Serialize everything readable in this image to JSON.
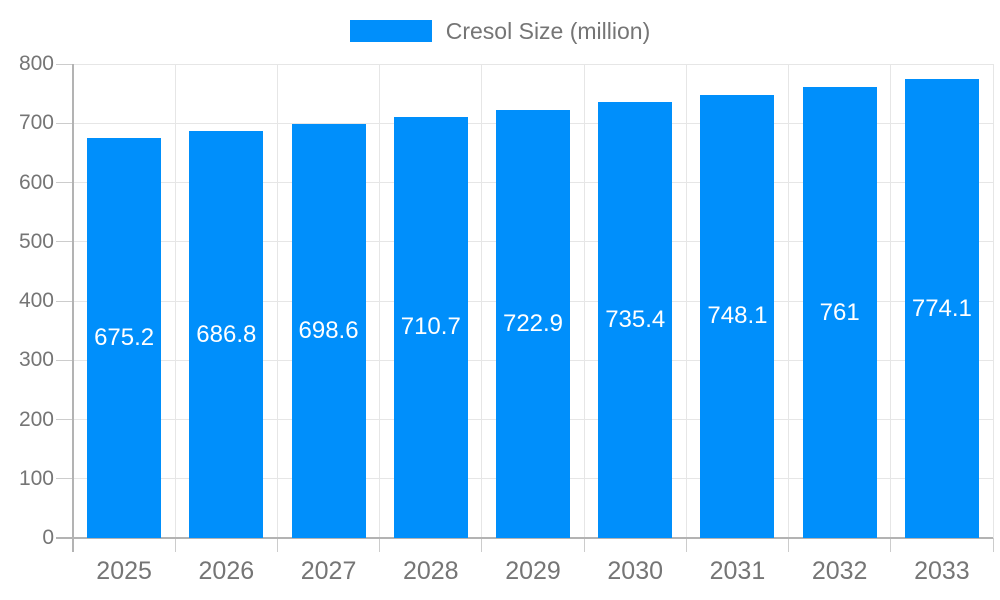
{
  "chart_data": {
    "type": "bar",
    "title": "",
    "legend": {
      "label": "Cresol Size (million)",
      "position": "top"
    },
    "categories": [
      "2025",
      "2026",
      "2027",
      "2028",
      "2029",
      "2030",
      "2031",
      "2032",
      "2033"
    ],
    "series": [
      {
        "name": "Cresol Size (million)",
        "values": [
          675.2,
          686.8,
          698.6,
          710.7,
          722.9,
          735.4,
          748.1,
          761,
          774.1
        ],
        "value_labels": [
          "675.2",
          "686.8",
          "698.6",
          "710.7",
          "722.9",
          "735.4",
          "748.1",
          "761",
          "774.1"
        ]
      }
    ],
    "xlabel": "",
    "ylabel": "",
    "ylim": [
      0,
      800
    ],
    "ytick_step": 100,
    "ytick_labels": [
      "0",
      "100",
      "200",
      "300",
      "400",
      "500",
      "600",
      "700",
      "800"
    ],
    "grid": true,
    "colors": {
      "bar": "#008FFB",
      "value_label_text": "#ffffff",
      "axis_text": "#757575",
      "legend_text": "#757575",
      "gridline": "#e6e6e6",
      "tick": "#cccccc",
      "axis_line": "#b3b3b3",
      "background": "#ffffff"
    }
  }
}
